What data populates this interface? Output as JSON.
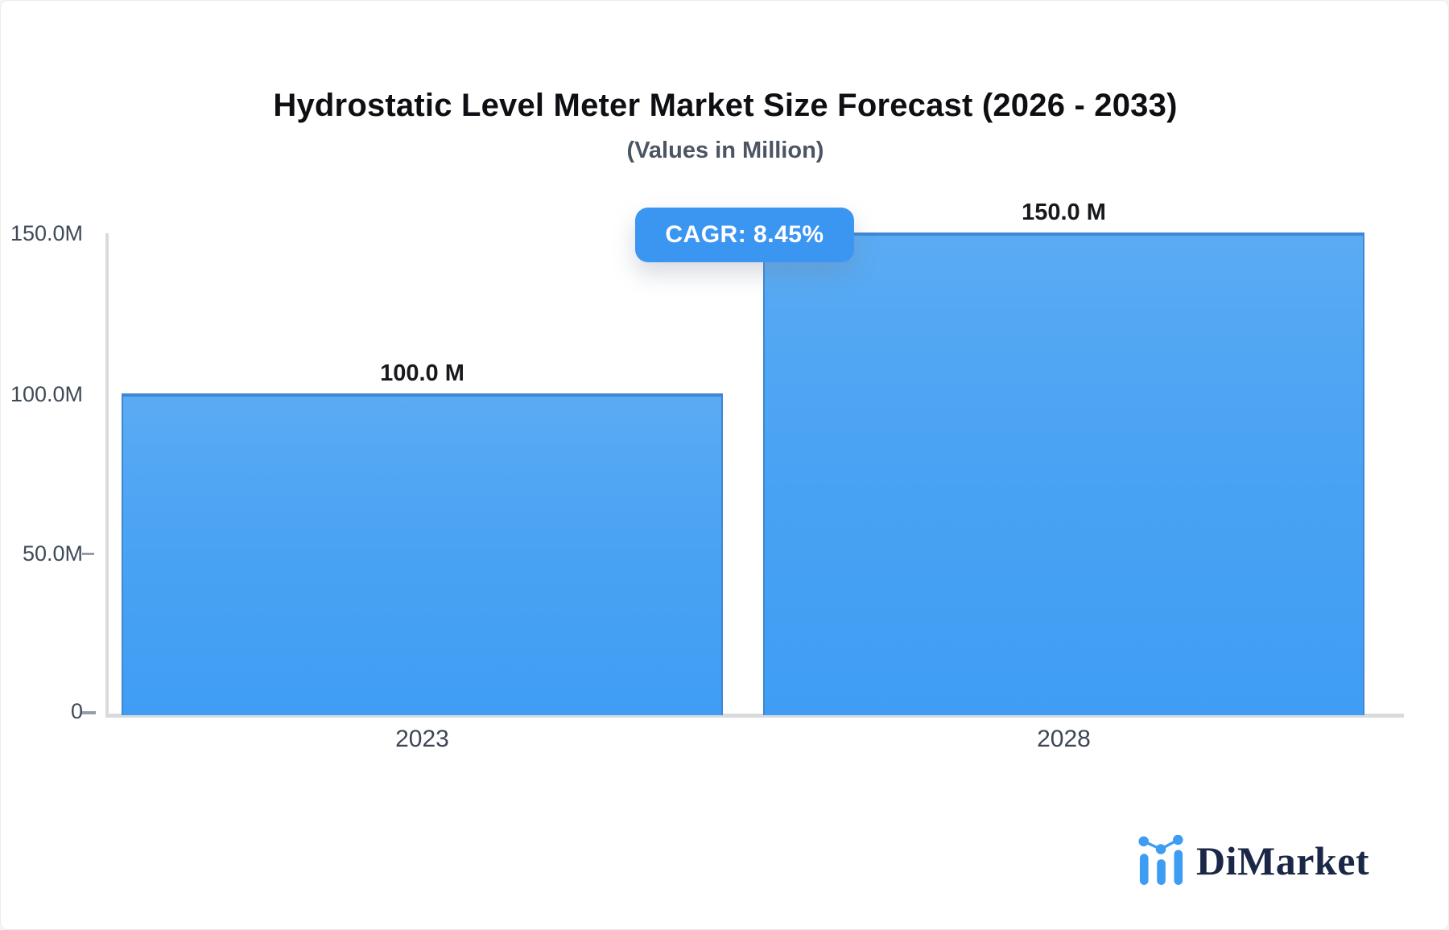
{
  "header": {
    "title": "Hydrostatic Level Meter Market Size Forecast (2026 - 2033)",
    "subtitle": "(Values in Million)"
  },
  "badge": {
    "label": "CAGR: 8.45%"
  },
  "chart_data": {
    "type": "bar",
    "title": "Hydrostatic Level Meter Market Size Forecast (2026 - 2033)",
    "subtitle": "(Values in Million)",
    "categories": [
      "2023",
      "2028"
    ],
    "values": [
      100.0,
      150.0
    ],
    "bar_labels": [
      "100.0 M",
      "150.0 M"
    ],
    "unit": "Million",
    "ylim": [
      0,
      150
    ],
    "ytick_labels": [
      "150.0M",
      "100.0M",
      "50.0M",
      "0"
    ],
    "grid": false,
    "legend": false,
    "bar_color": "#46a1f2",
    "bar_border_color": "#3d87d3",
    "badge_color": "#3b96f2",
    "cagr": "8.45%"
  },
  "footer": {
    "brand": "DiMarket"
  },
  "icons": {
    "logo_icon": "bar-chart-with-trend-dots-icon"
  }
}
